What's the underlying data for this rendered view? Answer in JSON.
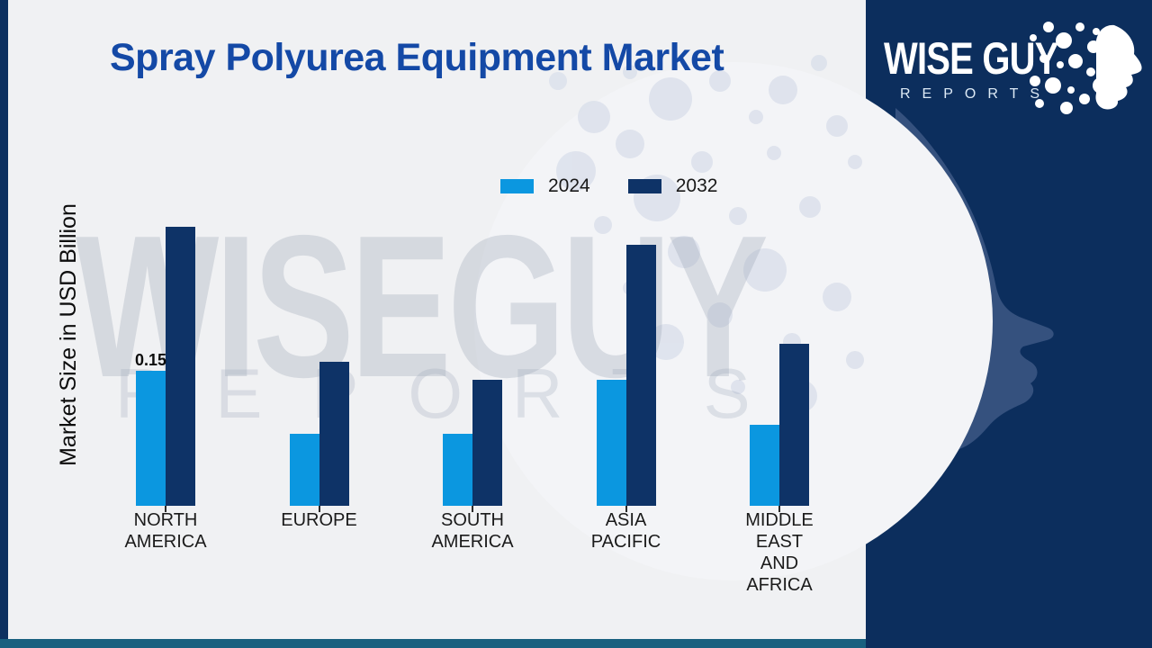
{
  "title": "Spray Polyurea Equipment Market",
  "logo": {
    "line1": "WISE GUY",
    "line2": "REPORTS"
  },
  "watermark": {
    "line1": "WISEGUY",
    "line2": "REPORTS"
  },
  "colors": {
    "title": "#1449a6",
    "bar_2024": "#0b97e0",
    "bar_2032": "#0e3367",
    "panel_navy": "#0c2e5d",
    "left_strip_navy": "#0d3160",
    "teal_strip": "#19607f",
    "face_slate": "#35517e",
    "page_bg": "#f0f1f3",
    "circle_fill": "#f3f4f7"
  },
  "chart_data": {
    "type": "bar",
    "title": "Spray Polyurea Equipment Market",
    "xlabel": "",
    "ylabel": "Market Size in USD Billion",
    "units": "USD Billion",
    "categories": [
      "NORTH AMERICA",
      "EUROPE",
      "SOUTH AMERICA",
      "ASIA PACIFIC",
      "MIDDLE EAST AND AFRICA"
    ],
    "series": [
      {
        "name": "2024",
        "color": "#0b97e0",
        "values": [
          0.15,
          0.08,
          0.08,
          0.14,
          0.09
        ]
      },
      {
        "name": "2032",
        "color": "#0e3367",
        "values": [
          0.31,
          0.16,
          0.14,
          0.29,
          0.18
        ]
      }
    ],
    "data_labels": [
      {
        "series": "2024",
        "category": "NORTH AMERICA",
        "text": "0.15"
      }
    ],
    "legend_position": "top-center",
    "grid": false,
    "axis_line": false,
    "ylim": [
      0,
      0.35
    ]
  }
}
